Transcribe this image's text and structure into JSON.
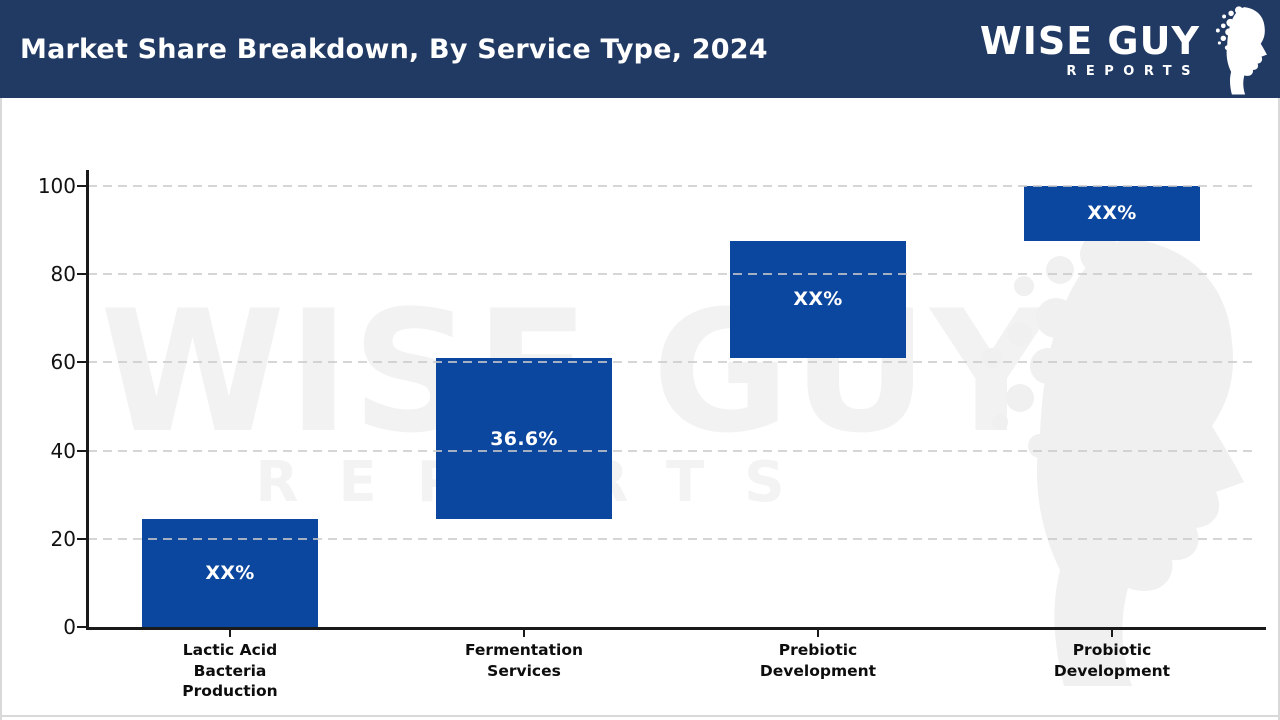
{
  "header": {
    "title": "Market Share Breakdown, By Service Type, 2024",
    "logo_line1": "WISE GUY",
    "logo_line2": "REPORTS",
    "bg_color": "#213A64"
  },
  "watermark": {
    "line1": "WISE GUY",
    "line2": "REPORTS"
  },
  "chart_data": {
    "type": "bar",
    "subtype": "floating-waterfall",
    "title": "Market Share Breakdown, By Service Type, 2024",
    "categories": [
      [
        "Lactic Acid",
        "Bacteria",
        "Production"
      ],
      [
        "Fermentation",
        "Services"
      ],
      [
        "Prebiotic",
        "Development"
      ],
      [
        "Probiotic",
        "Development"
      ]
    ],
    "segments": [
      {
        "start": 0,
        "end": 24.4,
        "label": "XX%"
      },
      {
        "start": 24.4,
        "end": 61.0,
        "label": "36.6%"
      },
      {
        "start": 61.0,
        "end": 87.6,
        "label": "XX%"
      },
      {
        "start": 87.6,
        "end": 100.0,
        "label": "XX%"
      }
    ],
    "yticks": [
      0,
      20,
      40,
      60,
      80,
      100
    ],
    "ylim": [
      0,
      103
    ],
    "xlabel": "",
    "ylabel": "",
    "grid": "horizontal-dashed",
    "gridline_color": "#cbcbcb",
    "legend": "none",
    "bar_color": "#0B479E",
    "bar_label_color": "#FFFFFF",
    "axis_color": "#1a1a1a"
  }
}
